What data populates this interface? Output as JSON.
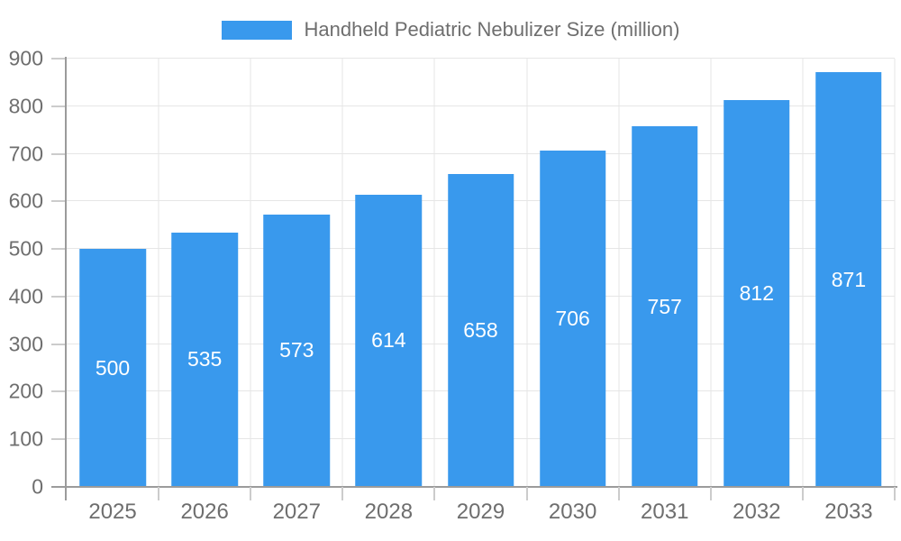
{
  "chart_data": {
    "type": "bar",
    "title": "Handheld Pediatric Nebulizer Size (million)",
    "legend_label": "Handheld Pediatric Nebulizer Size (million)",
    "legend_position": "top",
    "categories": [
      "2025",
      "2026",
      "2027",
      "2028",
      "2029",
      "2030",
      "2031",
      "2032",
      "2033"
    ],
    "values": [
      500,
      535,
      573,
      614,
      658,
      706,
      757,
      812,
      871
    ],
    "xlabel": "",
    "ylabel": "",
    "ylim": [
      0,
      900
    ],
    "ytick_step": 100,
    "yticks": [
      0,
      100,
      200,
      300,
      400,
      500,
      600,
      700,
      800,
      900
    ],
    "grid": true,
    "bar_color": "#3999ED",
    "value_label_color": "#FFFFFF"
  },
  "colors": {
    "background": "#FFFFFF",
    "axis_text": "#6E6E6E",
    "gridline": "#E6E6E6",
    "tick": "#CCCCCC",
    "axis_line": "#9B9B9B"
  }
}
